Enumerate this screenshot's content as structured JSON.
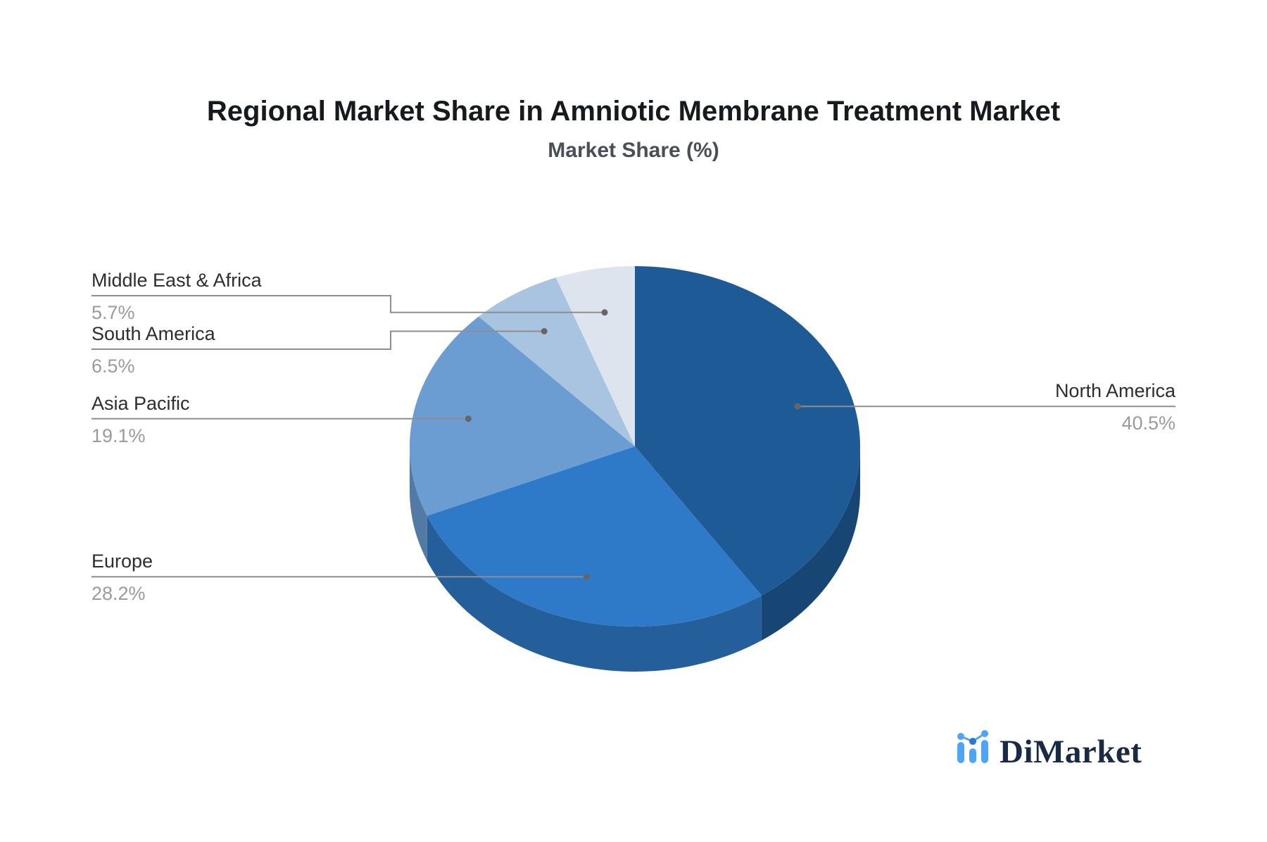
{
  "chart_data": {
    "type": "pie",
    "title": "Regional Market Share in Amniotic Membrane Treatment Market",
    "subtitle": "Market Share (%)",
    "unit": "%",
    "start_angle": "top",
    "direction": "clockwise",
    "legend": "none",
    "style": "3d-depth-pie",
    "items": [
      {
        "label": "North America",
        "value": 40.5,
        "pct_label": "40.5%",
        "color": "#1E5A96"
      },
      {
        "label": "Europe",
        "value": 28.2,
        "pct_label": "28.2%",
        "color": "#2E7AC8"
      },
      {
        "label": "Asia Pacific",
        "value": 19.1,
        "pct_label": "19.1%",
        "color": "#6B9CD2"
      },
      {
        "label": "South America",
        "value": 6.5,
        "pct_label": "6.5%",
        "color": "#A9C4E0"
      },
      {
        "label": "Middle East & Africa",
        "value": 5.7,
        "pct_label": "5.7%",
        "color": "#DDE4EE"
      }
    ]
  },
  "colors": {
    "background": "#FFFFFF",
    "title_text": "#16191D",
    "subtitle_text": "#494F57",
    "label_text": "#2E2E2E",
    "pct_text": "#9B9B9B",
    "leader_line": "#8E8E8E",
    "leader_dot": "#666666"
  },
  "brand": {
    "name": "DiMarket",
    "accent": "#4FA5F5",
    "accent_dark": "#2C77C9",
    "text_color": "#1B2A44"
  }
}
